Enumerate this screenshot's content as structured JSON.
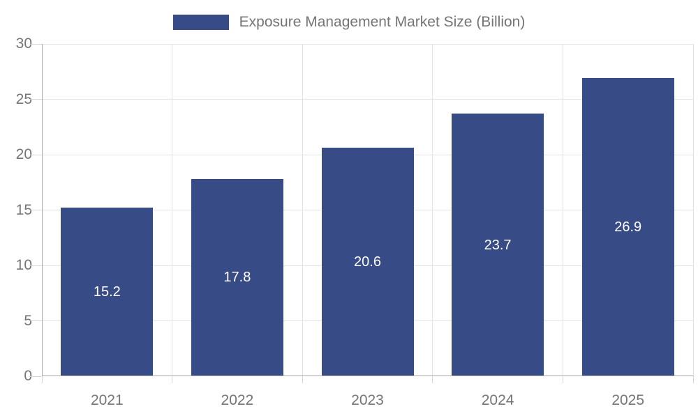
{
  "chart_data": {
    "type": "bar",
    "title": "Exposure Management Market Size (Billion)",
    "legend_entries": [
      "Exposure Management Market Size (Billion)"
    ],
    "legend_position": "top-center",
    "categories": [
      "2021",
      "2022",
      "2023",
      "2024",
      "2025"
    ],
    "values": [
      15.2,
      17.8,
      20.6,
      23.7,
      26.9
    ],
    "value_labels": [
      "15.2",
      "17.8",
      "20.6",
      "23.7",
      "26.9"
    ],
    "xlabel": "",
    "ylabel": "",
    "ylim": [
      0,
      30
    ],
    "yticks": [
      0,
      5,
      10,
      15,
      20,
      25,
      30
    ],
    "grid": true,
    "colors": {
      "bar": "#374b87",
      "bar_value_label": "#ffffff",
      "axis_label": "#757575",
      "axis_line": "#aaaaaa",
      "gridline": "#e3e3e3",
      "background": "#ffffff"
    }
  }
}
